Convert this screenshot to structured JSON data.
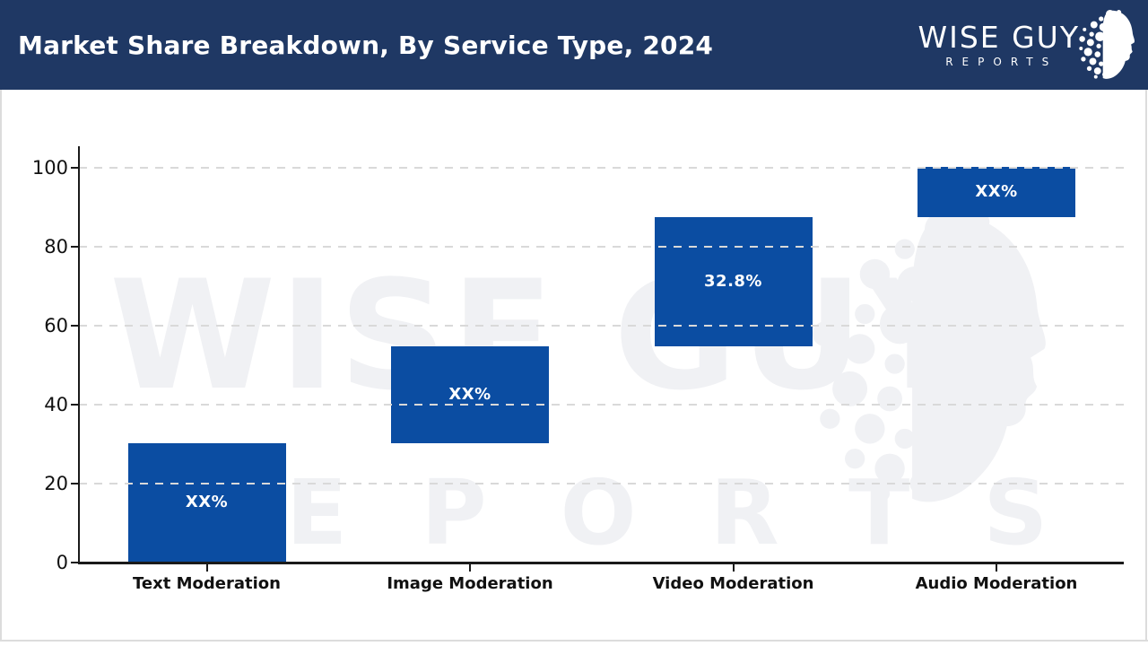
{
  "header": {
    "title": "Market Share Breakdown, By Service Type, 2024",
    "logo": {
      "line1": "WISE GUY",
      "line2": "REPORTS"
    }
  },
  "watermark": {
    "line1": "WISE GUY",
    "line2": "REPORTS"
  },
  "chart_data": {
    "type": "bar",
    "subtype": "waterfall",
    "title": "Market Share Breakdown, By Service Type, 2024",
    "categories": [
      "Text Moderation",
      "Image Moderation",
      "Video Moderation",
      "Audio Moderation"
    ],
    "segments": [
      {
        "category": "Text Moderation",
        "start": 0,
        "end": 30.3,
        "value": 30.3,
        "label": "XX%"
      },
      {
        "category": "Image Moderation",
        "start": 30.3,
        "end": 54.8,
        "value": 24.5,
        "label": "XX%"
      },
      {
        "category": "Video Moderation",
        "start": 54.8,
        "end": 87.6,
        "value": 32.8,
        "label": "32.8%"
      },
      {
        "category": "Audio Moderation",
        "start": 87.6,
        "end": 100.2,
        "value": 12.6,
        "label": "XX%"
      }
    ],
    "yticks": [
      0,
      20,
      40,
      60,
      80,
      100
    ],
    "ylim": [
      0,
      105
    ],
    "xlabel": "",
    "ylabel": "",
    "grid": "dashed-horizontal",
    "gridline_color": "#D9D9D9",
    "legend": "none",
    "bar_color": "#0B4DA2",
    "bar_label_color": "#FFFFFF",
    "axis_color": "#1A1A1A"
  },
  "colors": {
    "header_background": "#1F3864",
    "page_background": "#FFFFFF",
    "watermark": "#F0F1F4",
    "frame_border": "#DCDCDC"
  }
}
